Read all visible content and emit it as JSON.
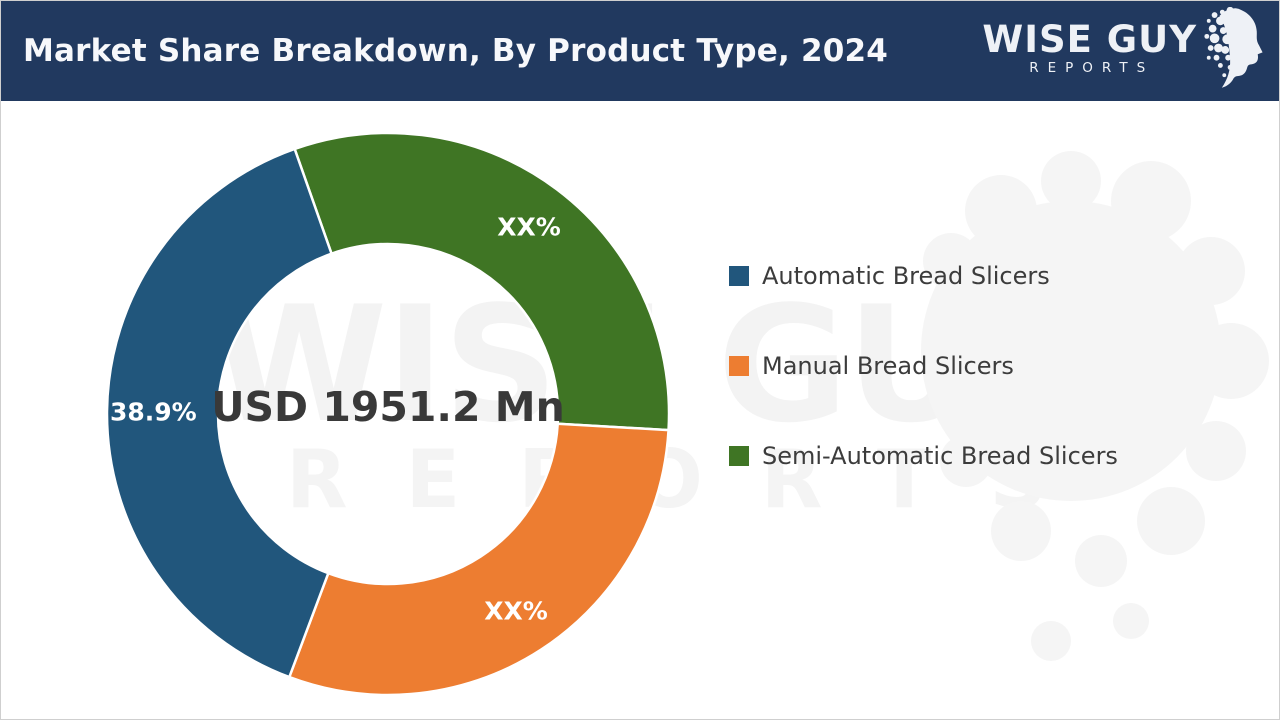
{
  "header": {
    "title": "Market Share Breakdown, By Product Type, 2024",
    "background_color": "#21395f",
    "logo": {
      "wordmark": "WISE GUY",
      "subtitle": "REPORTS"
    }
  },
  "watermark": {
    "line1": "WISE GUY",
    "line2": "REPORTS"
  },
  "chart_data": {
    "type": "pie",
    "subtype": "donut",
    "title": "Market Share Breakdown, By Product Type, 2024",
    "center_label": "USD 1951.2 Mn",
    "start_angle_deg": -19.4,
    "legend_position": "right",
    "segments": [
      {
        "name": "Semi-Automatic Bread Slicers",
        "label": "XX%",
        "value_pct": 31.3,
        "color": "#3f7524"
      },
      {
        "name": "Manual Bread Slicers",
        "label": "XX%",
        "value_pct": 29.8,
        "color": "#ed7d31"
      },
      {
        "name": "Automatic Bread Slicers",
        "label": "38.9%",
        "value_pct": 38.9,
        "color": "#21567c"
      }
    ],
    "legend": [
      {
        "name": "Automatic Bread Slicers",
        "color": "#21567c"
      },
      {
        "name": "Manual Bread Slicers",
        "color": "#ed7d31"
      },
      {
        "name": "Semi-Automatic Bread Slicers",
        "color": "#3f7524"
      }
    ]
  }
}
